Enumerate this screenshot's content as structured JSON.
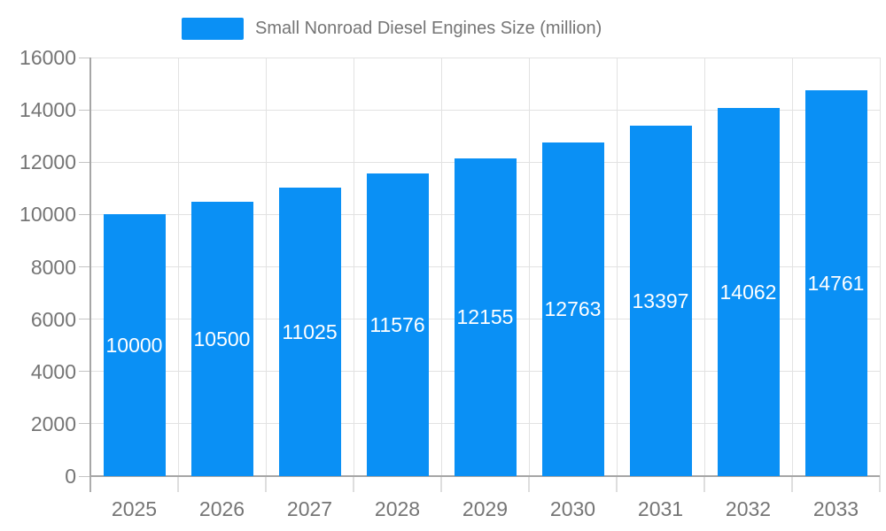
{
  "chart_data": {
    "type": "bar",
    "title": "Small Nonroad Diesel Engines Size (million)",
    "legend": "Small Nonroad Diesel Engines Size (million)",
    "legend_position": "top",
    "categories": [
      "2025",
      "2026",
      "2027",
      "2028",
      "2029",
      "2030",
      "2031",
      "2032",
      "2033"
    ],
    "values": [
      10000,
      10500,
      11025,
      11576,
      12155,
      12763,
      13397,
      14062,
      14761
    ],
    "value_labels": [
      "10000",
      "10500",
      "11025",
      "11576",
      "12155",
      "12763",
      "13397",
      "14062",
      "14761"
    ],
    "ylim": [
      0,
      16000
    ],
    "ytick_step": 2000,
    "ytick_labels": [
      "0",
      "2000",
      "4000",
      "6000",
      "8000",
      "10000",
      "12000",
      "14000",
      "16000"
    ],
    "grid": true,
    "colors": {
      "bar": "#0a90f5",
      "bar_value_label": "#ffffff",
      "axis_label": "#757575",
      "legend_text": "#757575",
      "gridline": "#e2e2e2",
      "axis_line": "#a6a6a6",
      "background": "#ffffff"
    }
  }
}
